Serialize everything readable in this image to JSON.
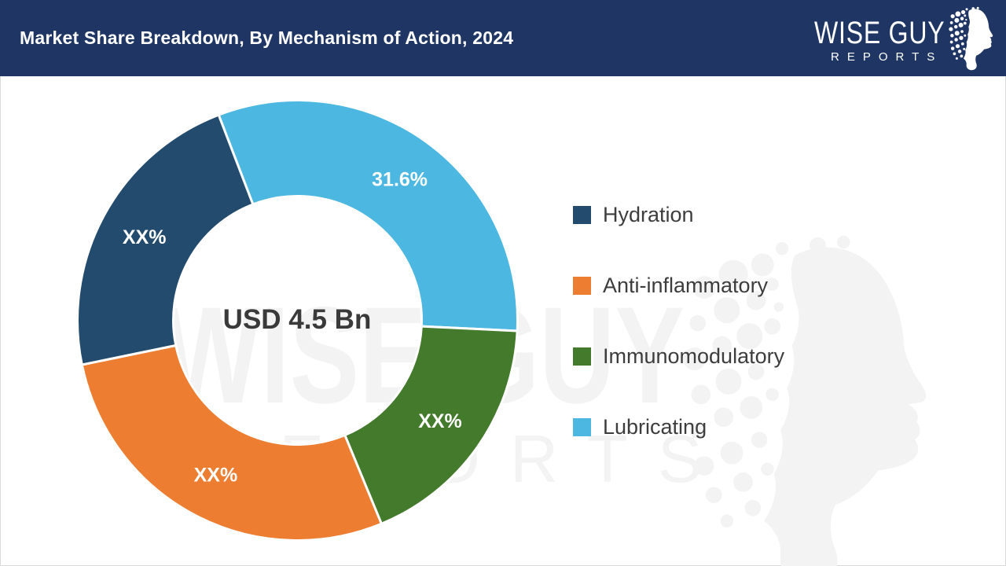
{
  "header": {
    "title": "Market Share Breakdown, By Mechanism of Action, 2024",
    "bg_color": "#1f3664",
    "logo": {
      "line1": "WISE GUY",
      "line2": "REPORTS"
    }
  },
  "watermark": {
    "line1": "WISE GUY",
    "line2": "REPORTS"
  },
  "chart_data": {
    "type": "donut",
    "title": "Market Share Breakdown, By Mechanism of Action, 2024",
    "center_label": "USD 4.5 Bn",
    "start_angle_deg": -21,
    "outer_radius": 280,
    "inner_radius": 158,
    "label_radius": 222,
    "segments": [
      {
        "label": "Lubricating",
        "display_value": "31.6%",
        "pct": 31.6,
        "color": "#4cb8e2"
      },
      {
        "label": "Immunomodulatory",
        "display_value": "XX%",
        "pct": 18.0,
        "color": "#447a2b"
      },
      {
        "label": "Anti-inflammatory",
        "display_value": "XX%",
        "pct": 28.0,
        "color": "#ed7d31"
      },
      {
        "label": "Hydration",
        "display_value": "XX%",
        "pct": 22.4,
        "color": "#224b6e"
      }
    ],
    "legend": [
      {
        "label": "Hydration",
        "color": "#224b6e"
      },
      {
        "label": "Anti-inflammatory",
        "color": "#ed7d31"
      },
      {
        "label": "Immunomodulatory",
        "color": "#447a2b"
      },
      {
        "label": "Lubricating",
        "color": "#4cb8e2"
      }
    ]
  }
}
